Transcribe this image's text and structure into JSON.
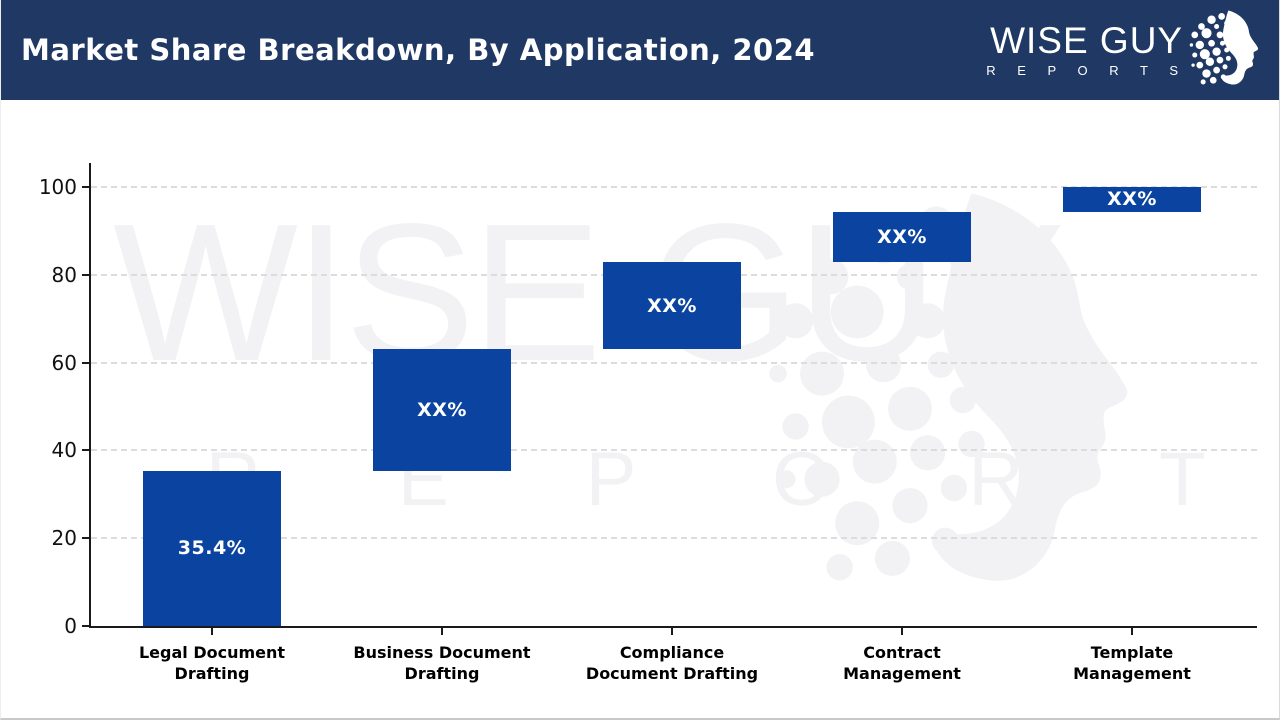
{
  "header": {
    "title": "Market Share Breakdown, By Application, 2024",
    "logo": {
      "name": "WISE GUY",
      "subtitle": "R E P O R T S"
    }
  },
  "watermark": {
    "line1": "WISE GUY",
    "line2": "R E P O R T S"
  },
  "colors": {
    "header_background": "#1f3864",
    "bar_fill": "#0a44a0",
    "bar_label_text": "#ffffff",
    "axis": "#1a1a1a",
    "gridline": "#dcdcdc",
    "watermark": "#f2f2f4"
  },
  "chart_data": {
    "type": "bar",
    "variant": "floating-waterfall",
    "title": "Market Share Breakdown, By Application, 2024",
    "categories": [
      "Legal Document Drafting",
      "Business Document Drafting",
      "Compliance Document Drafting",
      "Contract Management",
      "Template Management"
    ],
    "category_lines": [
      [
        "Legal Document",
        "Drafting"
      ],
      [
        "Business Document",
        "Drafting"
      ],
      [
        "Compliance",
        "Document Drafting"
      ],
      [
        "Contract",
        "Management"
      ],
      [
        "Template",
        "Management"
      ]
    ],
    "segments": [
      {
        "from": 0,
        "to": 35.4,
        "label": "35.4%"
      },
      {
        "from": 35.4,
        "to": 63,
        "label": "XX%"
      },
      {
        "from": 63,
        "to": 83,
        "label": "XX%"
      },
      {
        "from": 83,
        "to": 94.4,
        "label": "XX%"
      },
      {
        "from": 94.4,
        "to": 100,
        "label": "XX%"
      }
    ],
    "values_masked_as": "XX%",
    "xlabel": "",
    "ylabel": "",
    "yticks": [
      0,
      20,
      40,
      60,
      80,
      100
    ],
    "ylim": [
      0,
      105
    ],
    "grid": "horizontal-dashed",
    "legend": "none"
  }
}
